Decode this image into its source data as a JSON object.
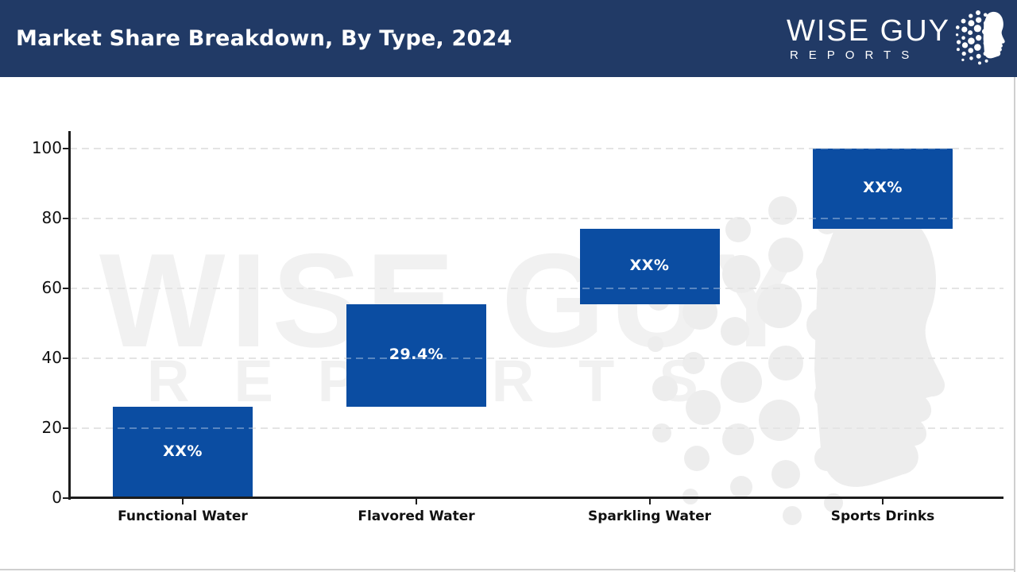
{
  "header": {
    "title": "Market Share Breakdown, By Type, 2024",
    "background_color": "#213a66"
  },
  "logo": {
    "line1": "WISE GUY",
    "line2": "REPORTS",
    "icon": "dotted-head-profile-icon"
  },
  "watermark": {
    "line1": "WISE GUY",
    "line2": "REPORTS",
    "icon": "dotted-head-profile-icon"
  },
  "chart_data": {
    "type": "bar",
    "subtype": "floating-waterfall",
    "title": "Market Share Breakdown, By Type, 2024",
    "xlabel": "",
    "ylabel": "",
    "categories": [
      "Functional Water",
      "Flavored Water",
      "Sparkling Water",
      "Sports Drinks"
    ],
    "bars": [
      {
        "category": "Functional Water",
        "base": 0,
        "top": 26,
        "label": "XX%"
      },
      {
        "category": "Flavored Water",
        "base": 26,
        "top": 55.4,
        "label": "29.4%"
      },
      {
        "category": "Sparkling Water",
        "base": 55.4,
        "top": 77,
        "label": "XX%"
      },
      {
        "category": "Sports Drinks",
        "base": 77,
        "top": 100,
        "label": "XX%"
      }
    ],
    "yticks": [
      0,
      20,
      40,
      60,
      80,
      100
    ],
    "ylim": [
      0,
      105
    ],
    "grid": "dashed-horizontal",
    "legend": "none",
    "bar_color": "#0b4da2",
    "bar_label_color": "#ffffff",
    "grid_color": "#d8d8d8",
    "axis_color": "#1c1c1c"
  }
}
